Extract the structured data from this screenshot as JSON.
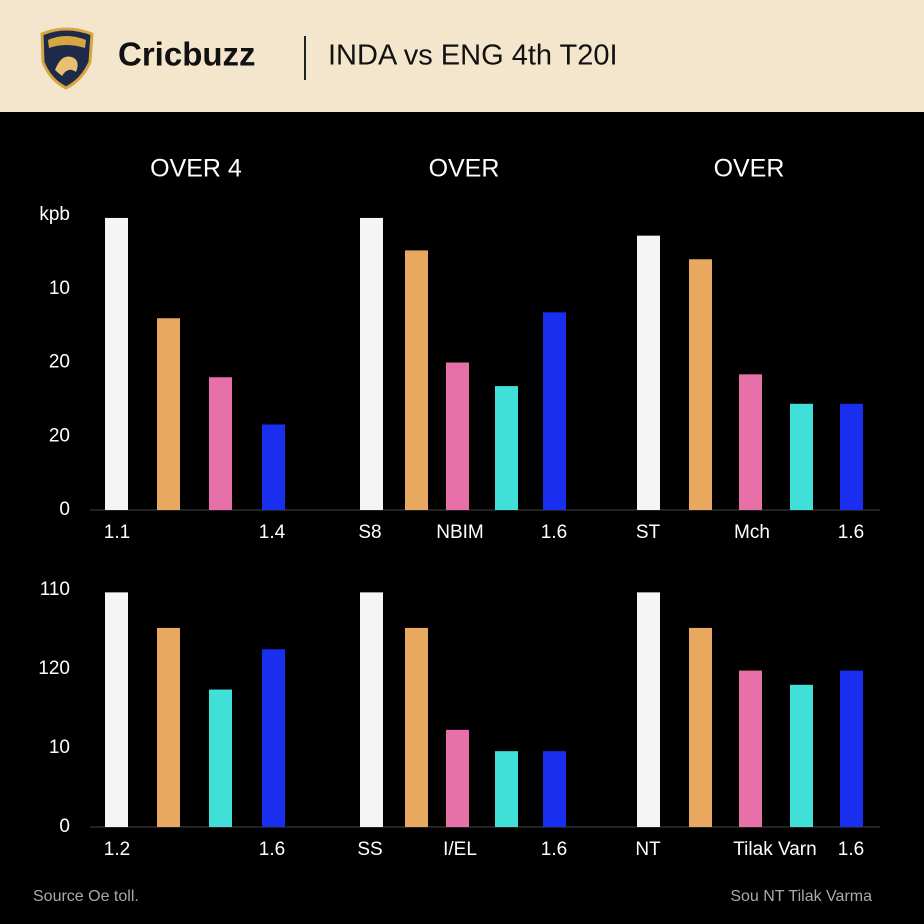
{
  "header": {
    "brand": "Cricbuzz",
    "match": "INDA vs ENG 4th T20I"
  },
  "footer": {
    "left": "Source Oe toll.",
    "right": "Sou NT Tilak Varma"
  },
  "chart_data": [
    {
      "type": "bar",
      "title": "OVER 4",
      "y_labels": [
        "kpb",
        "10",
        "20",
        "20",
        "0"
      ],
      "ylim": [
        0,
        100
      ],
      "values": [
        99,
        65,
        45,
        29
      ],
      "colors": [
        "#f5f5f5",
        "#e8a860",
        "#e870a8",
        "#1a2ef0"
      ],
      "x_labels": [
        "1.1",
        "1.4"
      ]
    },
    {
      "type": "bar",
      "title": "OVER",
      "ylim": [
        0,
        100
      ],
      "values": [
        99,
        88,
        50,
        42,
        67
      ],
      "colors": [
        "#f5f5f5",
        "#e8a860",
        "#e870a8",
        "#40e0d8",
        "#1a2ef0"
      ],
      "x_labels": [
        "S8",
        "NBIM",
        "1.6"
      ]
    },
    {
      "type": "bar",
      "title": "OVER",
      "ylim": [
        0,
        100
      ],
      "values": [
        93,
        85,
        46,
        36,
        36
      ],
      "colors": [
        "#f5f5f5",
        "#e8a860",
        "#e870a8",
        "#40e0d8",
        "#1a2ef0"
      ],
      "x_labels": [
        "ST",
        "Mch",
        "1.6"
      ]
    },
    {
      "type": "bar",
      "y_labels": [
        "110",
        "120",
        "10",
        "0"
      ],
      "ylim": [
        0,
        100
      ],
      "values": [
        99,
        84,
        58,
        75
      ],
      "colors": [
        "#f5f5f5",
        "#e8a860",
        "#40e0d8",
        "#1a2ef0"
      ],
      "x_labels": [
        "1.2",
        "1.6"
      ]
    },
    {
      "type": "bar",
      "ylim": [
        0,
        100
      ],
      "values": [
        99,
        84,
        41,
        32,
        32
      ],
      "colors": [
        "#f5f5f5",
        "#e8a860",
        "#e870a8",
        "#40e0d8",
        "#1a2ef0"
      ],
      "x_labels": [
        "SS",
        "I/EL",
        "1.6"
      ]
    },
    {
      "type": "bar",
      "ylim": [
        0,
        100
      ],
      "values": [
        99,
        84,
        66,
        60,
        66
      ],
      "colors": [
        "#f5f5f5",
        "#e8a860",
        "#e870a8",
        "#40e0d8",
        "#1a2ef0"
      ],
      "x_labels": [
        "NT",
        "Tilak Varn",
        "1.6"
      ]
    }
  ]
}
